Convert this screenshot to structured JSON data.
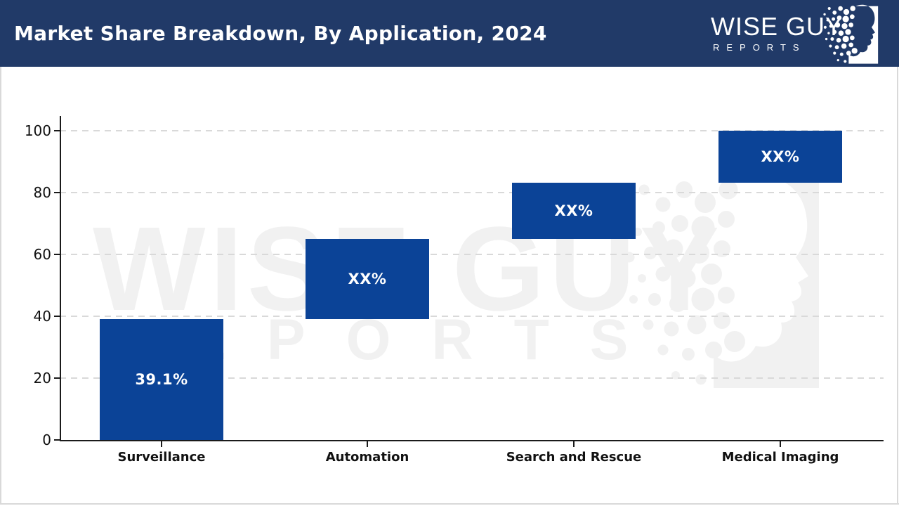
{
  "header": {
    "title": "Market Share Breakdown, By Application, 2024",
    "logo": {
      "line1": "WISE GUY",
      "line2": "REPORTS"
    }
  },
  "watermark": {
    "line1": "WISE GUY",
    "line2": "REPORTS"
  },
  "colors": {
    "header_bg": "#213a68",
    "bar": "#0b4397",
    "grid": "#d9d9d9",
    "axis": "#1a1a1a",
    "watermark": "#f1f1f1",
    "bar_label": "#ffffff"
  },
  "chart_data": {
    "type": "bar",
    "subtype": "waterfall",
    "title": "Market Share Breakdown, By Application, 2024",
    "categories": [
      "Surveillance",
      "Automation",
      "Search and Rescue",
      "Medical Imaging"
    ],
    "segments": [
      {
        "category": "Surveillance",
        "start": 0,
        "end": 39.1,
        "label": "39.1%"
      },
      {
        "category": "Automation",
        "start": 39.1,
        "end": 65.0,
        "label": "XX%"
      },
      {
        "category": "Search and Rescue",
        "start": 65.0,
        "end": 83.2,
        "label": "XX%"
      },
      {
        "category": "Medical Imaging",
        "start": 83.2,
        "end": 100.0,
        "label": "XX%"
      }
    ],
    "xlabel": "",
    "ylabel": "",
    "ylim": [
      0,
      100
    ],
    "yticks": [
      0,
      20,
      40,
      60,
      80,
      100
    ],
    "grid": "dashed-horizontal",
    "legend_position": "none"
  }
}
